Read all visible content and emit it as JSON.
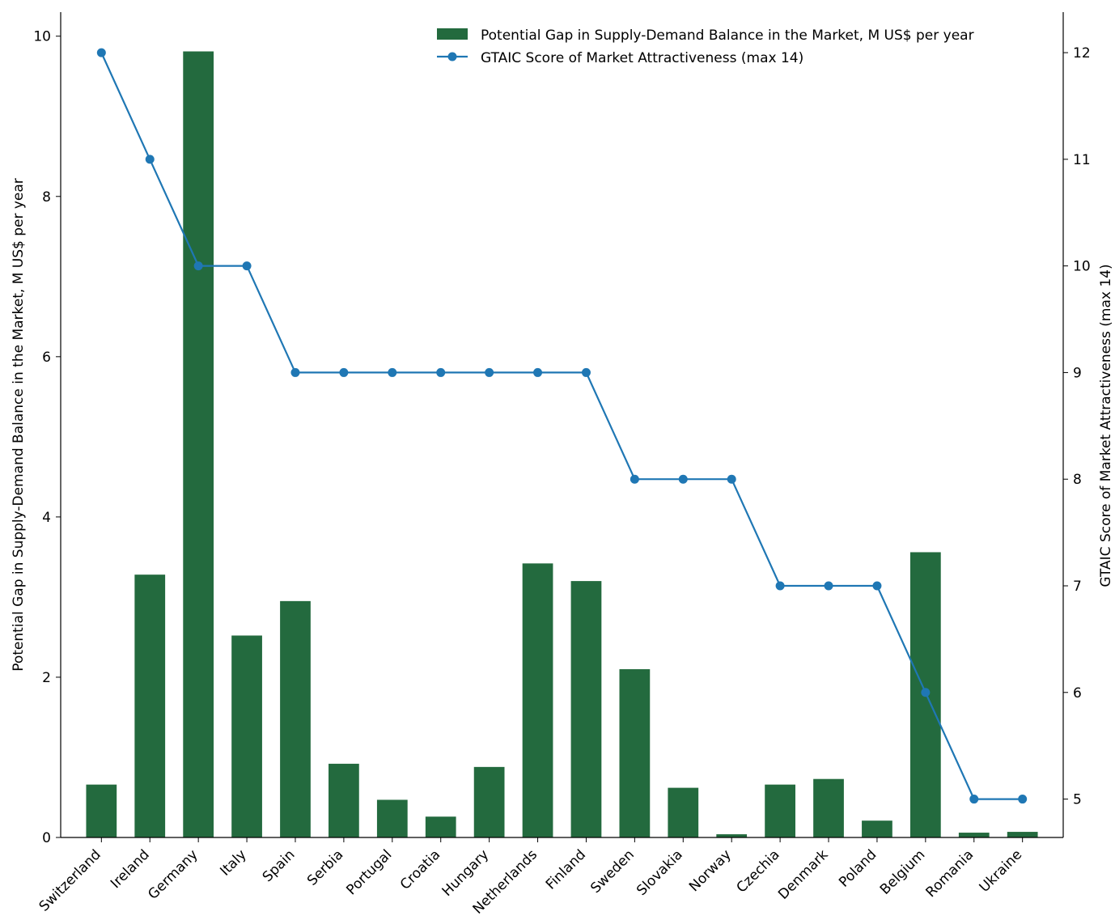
{
  "chart_data": {
    "type": "bar+line",
    "title": "",
    "categories": [
      "Switzerland",
      "Ireland",
      "Germany",
      "Italy",
      "Spain",
      "Serbia",
      "Portugal",
      "Croatia",
      "Hungary",
      "Netherlands",
      "Finland",
      "Sweden",
      "Slovakia",
      "Norway",
      "Czechia",
      "Denmark",
      "Poland",
      "Belgium",
      "Romania",
      "Ukraine"
    ],
    "series": [
      {
        "name": "Potential Gap in Supply-Demand Balance in the Market, M US$ per year",
        "kind": "bar",
        "axis": "left",
        "color": "#236a3e",
        "values": [
          0.66,
          3.28,
          9.81,
          2.52,
          2.95,
          0.92,
          0.47,
          0.26,
          0.88,
          3.42,
          3.2,
          2.1,
          0.62,
          0.04,
          0.66,
          0.73,
          0.21,
          3.56,
          0.06,
          0.07
        ]
      },
      {
        "name": "GTAIC Score of Market Attractiveness (max 14)",
        "kind": "line",
        "axis": "right",
        "color": "#1f77b4",
        "values": [
          12,
          11,
          10,
          10,
          9,
          9,
          9,
          9,
          9,
          9,
          9,
          8,
          8,
          8,
          7,
          7,
          7,
          6,
          5,
          5
        ]
      }
    ],
    "ylabel_left": "Potential Gap in Supply-Demand Balance in the Market, M US$ per year",
    "ylabel_right": "GTAIC Score of Market Attractiveness (max 14)",
    "ylim_left": [
      0,
      10.3
    ],
    "ylim_right": [
      4.64,
      12.38
    ],
    "yticks_left": [
      "0",
      "2",
      "4",
      "6",
      "8",
      "10"
    ],
    "yticks_right": [
      "5",
      "6",
      "7",
      "8",
      "9",
      "10",
      "11",
      "12"
    ],
    "legend_position": "top-right",
    "grid": false
  }
}
